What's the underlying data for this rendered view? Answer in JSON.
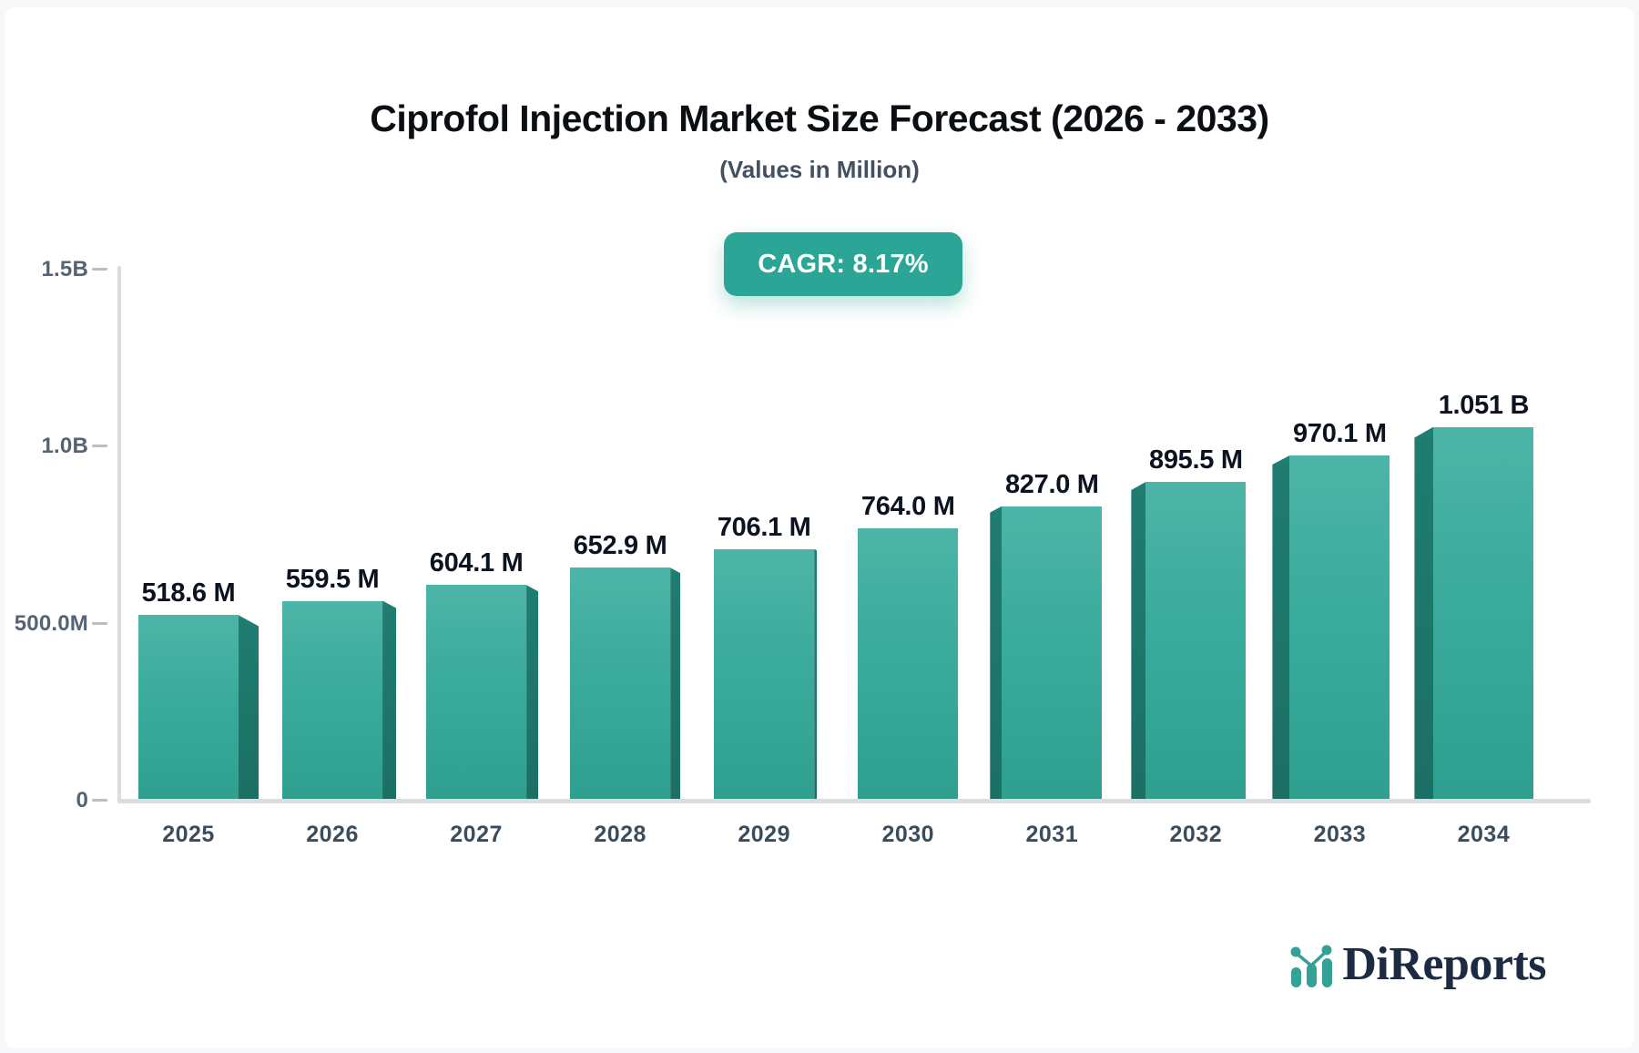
{
  "page": {
    "background": "#f7f8fa",
    "card_background": "#ffffff"
  },
  "header": {
    "title": "Ciprofol Injection Market Size Forecast (2026 - 2033)",
    "subtitle": "(Values in Million)"
  },
  "badge": {
    "label": "CAGR: 8.17%",
    "background": "#2aa596",
    "text_color": "#ffffff"
  },
  "chart_data": {
    "type": "bar",
    "title": "Ciprofol Injection Market Size Forecast (2026 - 2033)",
    "subtitle": "(Values in Million)",
    "unit": "Million USD",
    "categories": [
      "2025",
      "2026",
      "2027",
      "2028",
      "2029",
      "2030",
      "2031",
      "2032",
      "2033",
      "2034"
    ],
    "values": [
      518.6,
      559.5,
      604.1,
      652.9,
      706.1,
      764.0,
      827.0,
      895.5,
      970.1,
      1051.0
    ],
    "value_labels": [
      "518.6 M",
      "559.5 M",
      "604.1 M",
      "652.9 M",
      "706.1 M",
      "764.0 M",
      "827.0 M",
      "895.5 M",
      "970.1 M",
      "1.051 B"
    ],
    "cagr_label": "CAGR: 8.17%",
    "ylim": [
      0,
      1500
    ],
    "yticks": [
      {
        "value": 0,
        "label": "0"
      },
      {
        "value": 500,
        "label": "500.0M"
      },
      {
        "value": 1000,
        "label": "1.0B"
      },
      {
        "value": 1500,
        "label": "1.5B"
      }
    ],
    "xlabel": "",
    "ylabel": "",
    "grid": false,
    "legend_position": "none",
    "style": {
      "bar_color_top": "#4db5a7",
      "bar_color_bottom": "#2fa090",
      "bar_side_color": "#1e7b6f",
      "axis_color": "#d9dce0",
      "effect": "3d-center-vanishing-point"
    }
  },
  "branding": {
    "logo_text": "DiReports",
    "logo_icon": "mini-bar-chart-icon",
    "logo_text_color": "#1c2b42",
    "logo_icon_color": "#33a195"
  }
}
